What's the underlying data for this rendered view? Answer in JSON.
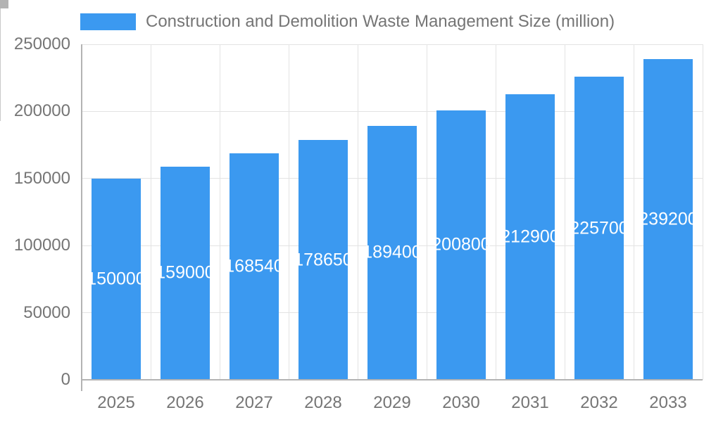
{
  "chart_data": {
    "type": "bar",
    "title": "Construction and Demolition Waste Management Size (million)",
    "categories": [
      "2025",
      "2026",
      "2027",
      "2028",
      "2029",
      "2030",
      "2031",
      "2032",
      "2033"
    ],
    "values": [
      150000,
      159000,
      168540,
      178650,
      189400,
      200800,
      212900,
      225700,
      239200
    ],
    "value_labels": [
      "150000",
      "159000",
      "168540",
      "178650",
      "189400",
      "200800",
      "212900",
      "225700",
      "239200"
    ],
    "xlabel": "",
    "ylabel": "",
    "ylim": [
      0,
      250000
    ],
    "y_ticks": [
      0,
      50000,
      100000,
      150000,
      200000,
      250000
    ],
    "y_tick_labels": [
      "0",
      "50000",
      "100000",
      "150000",
      "200000",
      "250000"
    ],
    "grid": true,
    "legend_position": "top-left",
    "colors": {
      "bar": "#3B99F0",
      "bar_value_text": "#ffffff",
      "grid_line": "#e3e3e3",
      "axis_line": "#b3b3b3",
      "tick_text": "#757575",
      "background": "#ffffff"
    }
  }
}
